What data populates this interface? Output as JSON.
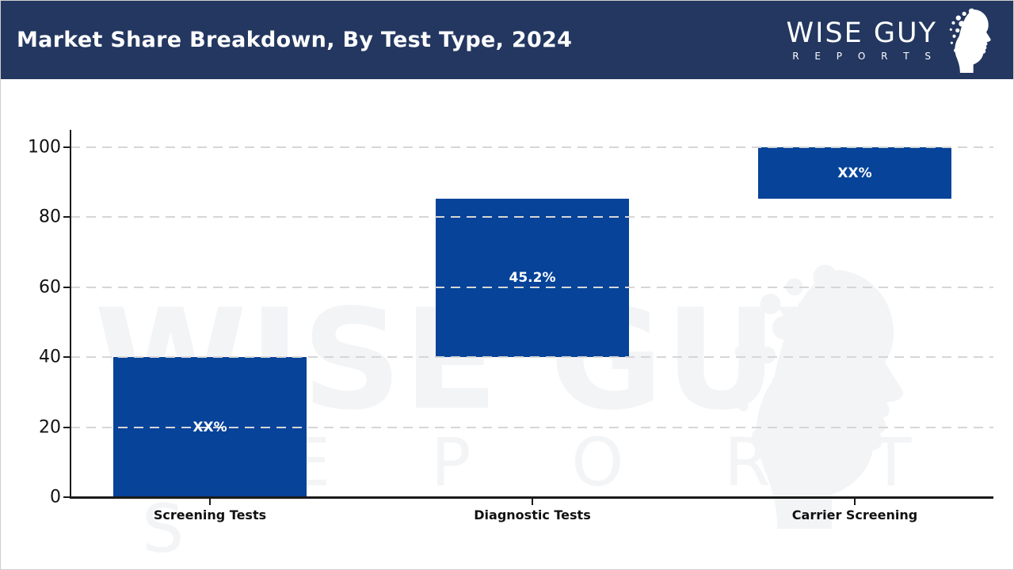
{
  "header": {
    "title": "Market Share Breakdown, By Test Type, 2024",
    "logo": {
      "line1": "WISE GUY",
      "line2": "R E P O R T S"
    }
  },
  "watermark": {
    "line1": "WISE GUY",
    "line2": "R E P O R T S"
  },
  "colors": {
    "header_bg": "#233760",
    "bar": "#064399",
    "bar_label": "#ffffff",
    "axis": "#1a1a1a",
    "gridline": "#d6d6d6",
    "watermark": "#f3f4f6"
  },
  "chart_data": {
    "type": "bar",
    "subtype": "floating-waterfall",
    "title": "Market Share Breakdown, By Test Type, 2024",
    "categories": [
      "Screening Tests",
      "Diagnostic Tests",
      "Carrier Screening"
    ],
    "segments": [
      {
        "category": "Screening Tests",
        "start": 0,
        "end": 40,
        "label": "XX%"
      },
      {
        "category": "Diagnostic Tests",
        "start": 40,
        "end": 85.2,
        "label": "45.2%"
      },
      {
        "category": "Carrier Screening",
        "start": 85.2,
        "end": 100,
        "label": "XX%"
      }
    ],
    "ylim": [
      0,
      100
    ],
    "yticks": [
      0,
      20,
      40,
      60,
      80,
      100
    ],
    "xlabel": "",
    "ylabel": "",
    "grid": "dashed horizontal",
    "legend": "none"
  }
}
